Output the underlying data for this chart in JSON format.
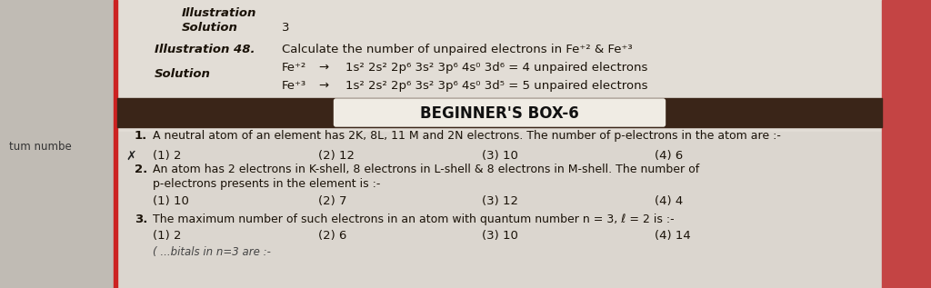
{
  "page_bg": "#d4cfc8",
  "top_section_bg": "#e8e4de",
  "bottom_section_bg": "#dedad4",
  "box_bg": "#3a2518",
  "box_inner_bg": "#f0ece4",
  "left_strip_color": "#c8c4bc",
  "text_dark": "#1a1208",
  "illustration_top": "Illustration",
  "solution_top": "Solution",
  "solution_num": "3",
  "illustration48": "Illustration 48.",
  "illustration48_text": "Calculate the number of unpaired electrons in Fe⁺² & Fe⁺³",
  "solution_label": "Solution",
  "fe2_label": "Fe⁺²",
  "fe2_arrow": "→",
  "fe2_config": "1s² 2s² 2p⁶ 3s² 3p⁶ 4s⁰ 3d⁶ = 4 unpaired electrons",
  "fe3_label": "Fe⁺³",
  "fe3_arrow": "→",
  "fe3_config": "1s² 2s² 2p⁶ 3s² 3p⁶ 4s⁰ 3d⁵ = 5 unpaired electrons",
  "box_title": "BEGINNER'S BOX-6",
  "left_margin_text": "tum numbe",
  "q1_num": "1.",
  "q1_text": "A neutral atom of an element has 2K, 8L, 11 M and 2N electrons. The number of p-electrons in the atom are :-",
  "q1_opts": [
    "(1) 2",
    "(2) 12",
    "(3) 10",
    "(4) 6"
  ],
  "q2_num": "2.",
  "q2_line1": "An atom has 2 electrons in K-shell, 8 electrons in L-shell & 8 electrons in M-shell. The number of",
  "q2_line2": "p-electrons presents in the element is :-",
  "q2_opts": [
    "(1) 10",
    "(2) 7",
    "(3) 12",
    "(4) 4"
  ],
  "q3_num": "3.",
  "q3_text": "The maximum number of such electrons in an atom with quantum number n = 3, ℓ = 2 is :-",
  "q3_opts": [
    "(1) 2",
    "(2) 6",
    "(3) 10",
    "(4) 14"
  ],
  "bottom_text": "( ...bitals in n=3 are :-"
}
